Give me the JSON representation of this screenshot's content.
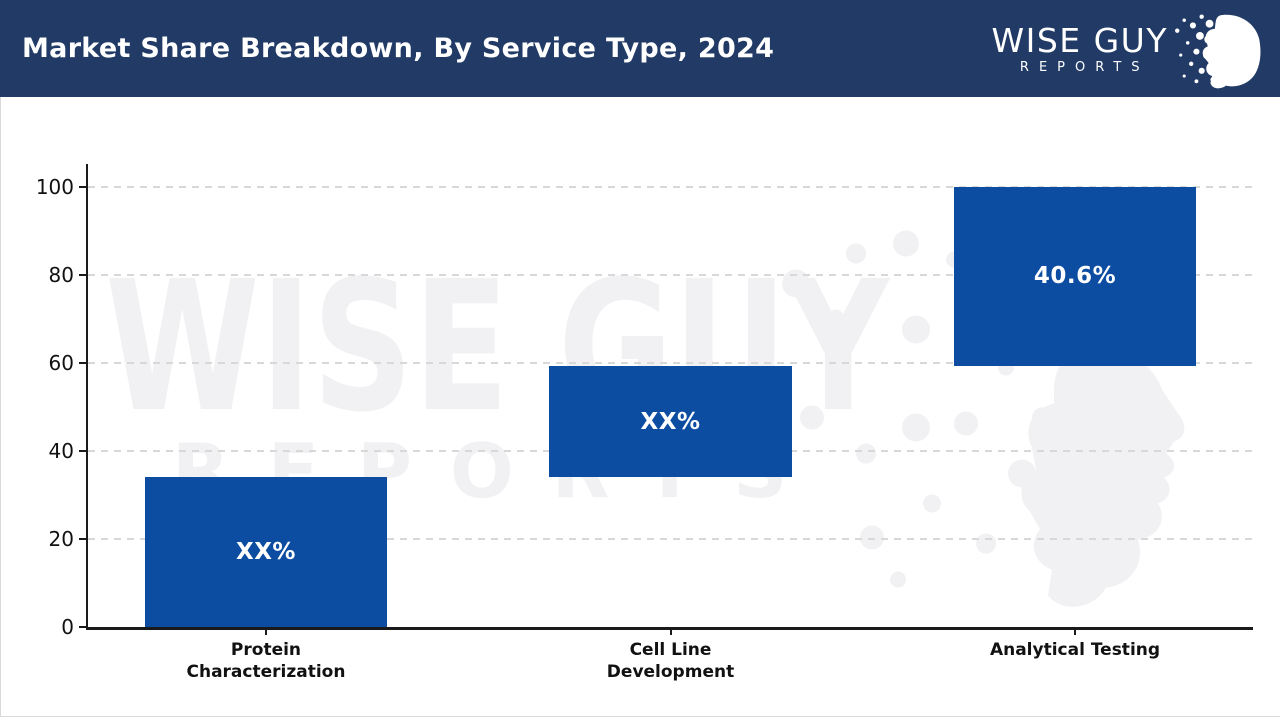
{
  "header": {
    "title": "Market Share Breakdown, By Service Type, 2024",
    "bg_color": "#213a66",
    "logo": {
      "line1": "WISE GUY",
      "line2": "REPORTS"
    }
  },
  "watermark": {
    "line1": "WISE GUY",
    "line2": "REPORTS",
    "color": "#f1f1f3"
  },
  "chart_data": {
    "type": "bar",
    "subtype": "waterfall",
    "title": "Market Share Breakdown, By Service Type, 2024",
    "categories": [
      "Protein Characterization",
      "Cell Line Development",
      "Analytical Testing"
    ],
    "category_lines": [
      [
        "Protein",
        "Characterization"
      ],
      [
        "Cell Line",
        "Development"
      ],
      [
        "Analytical Testing"
      ]
    ],
    "segments": [
      {
        "label": "Protein Characterization",
        "start": 0,
        "end": 34,
        "value": 34,
        "value_label": "XX%"
      },
      {
        "label": "Cell Line Development",
        "start": 34,
        "end": 59.4,
        "value": 25.4,
        "value_label": "XX%"
      },
      {
        "label": "Analytical Testing",
        "start": 59.4,
        "end": 100,
        "value": 40.6,
        "value_label": "40.6%"
      }
    ],
    "y_ticks": [
      0,
      20,
      40,
      60,
      80,
      100
    ],
    "ylim": [
      0,
      100
    ],
    "bar_color": "#0c4da2",
    "gridline_color": "#d8d8d8",
    "axis_color": "#1a1a1a",
    "grid": true,
    "legend": "none"
  }
}
